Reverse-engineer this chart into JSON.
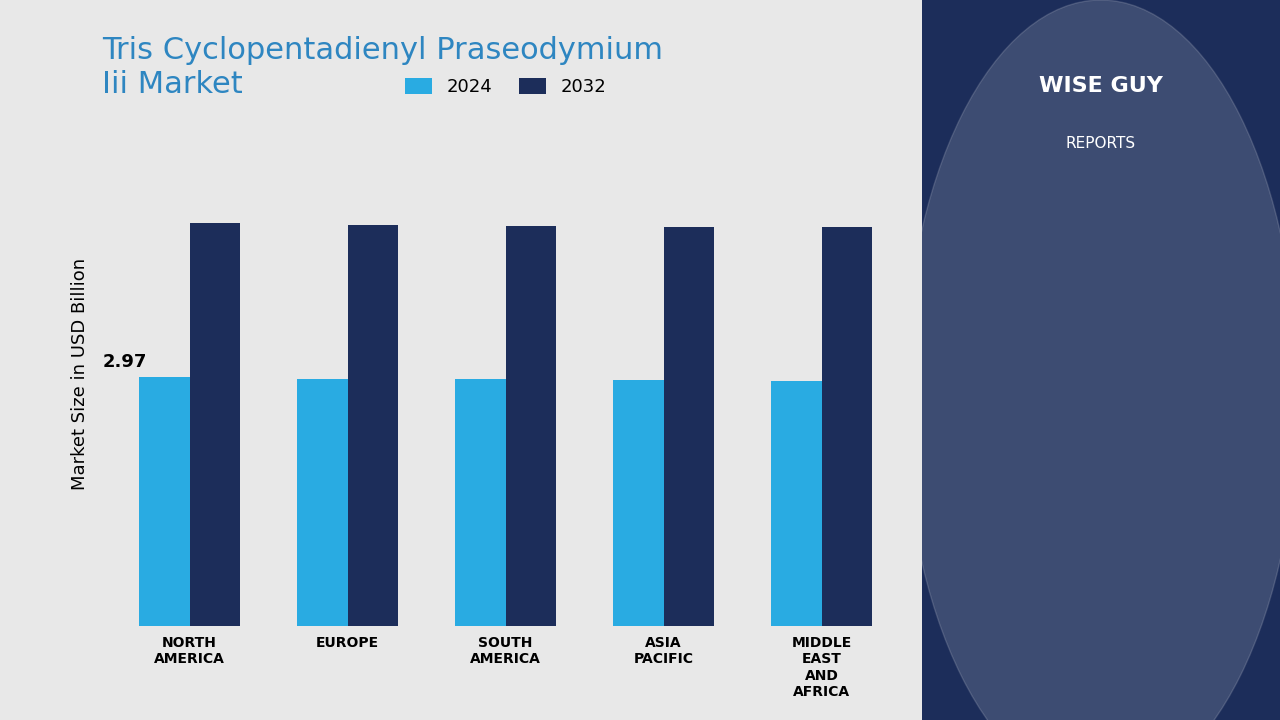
{
  "title": "Tris Cyclopentadienyl Praseodymium\nIii Market",
  "title_color": "#2E86C1",
  "ylabel": "Market Size in USD Billion",
  "categories": [
    "NORTH\nAMERICA",
    "EUROPE",
    "SOUTH\nAMERICA",
    "ASIA\nPACIFIC",
    "MIDDLE\nEAST\nAND\nAFRICA"
  ],
  "values_2024": [
    2.97,
    2.95,
    2.94,
    2.93,
    2.92
  ],
  "values_2032": [
    4.8,
    4.78,
    4.77,
    4.76,
    4.75
  ],
  "color_2024": "#29ABE2",
  "color_2032": "#1C2D5A",
  "annotation_value": "2.97",
  "annotation_index": 0,
  "legend_labels": [
    "2024",
    "2032"
  ],
  "bg_color": "#E8E8E8",
  "right_panel_color": "#1C2D5A",
  "bar_width": 0.32,
  "ylim": [
    0,
    6.0
  ],
  "ylabel_fontsize": 13,
  "title_fontsize": 22,
  "tick_fontsize": 10,
  "legend_fontsize": 13,
  "annotation_fontsize": 13
}
